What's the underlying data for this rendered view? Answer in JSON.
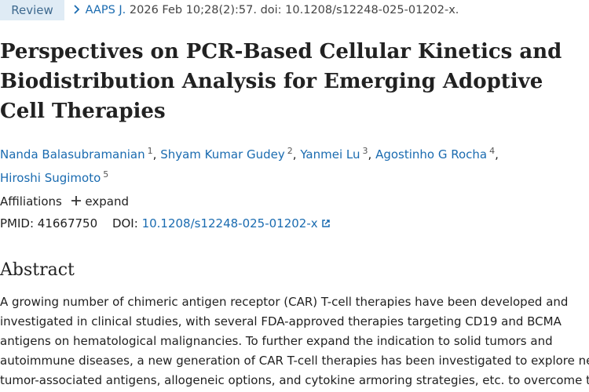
{
  "header": {
    "badge": "Review",
    "journal": "AAPS J.",
    "citation": "2026 Feb 10;28(2):57. doi: 10.1208/s12248-025-01202-x."
  },
  "title": "Perspectives on PCR-Based Cellular Kinetics and Biodistribution Analysis for Emerging Adoptive Cell Therapies",
  "authors": [
    {
      "name": "Nanda Balasubramanian",
      "affiliation": "1"
    },
    {
      "name": "Shyam Kumar Gudey",
      "affiliation": "2"
    },
    {
      "name": "Yanmei Lu",
      "affiliation": "3"
    },
    {
      "name": "Agostinho G Rocha",
      "affiliation": "4"
    },
    {
      "name": "Hiroshi Sugimoto",
      "affiliation": "5"
    }
  ],
  "author_separator": ",",
  "affiliations": {
    "label": "Affiliations",
    "toggle": "expand"
  },
  "identifiers": {
    "pmid_label": "PMID:",
    "pmid": "41667750",
    "doi_label": "DOI:",
    "doi": "10.1208/s12248-025-01202-x"
  },
  "abstract": {
    "heading": "Abstract",
    "lines": [
      "A growing number of chimeric antigen receptor (CAR) T-cell therapies have been developed and",
      "investigated in clinical studies, with several FDA-approved therapies targeting CD19 and BCMA",
      "antigens on hematological malignancies. To further expand the indication to solid tumors and",
      "autoimmune diseases, a new generation of CAR T-cell therapies has been investigated to explore new",
      "tumor-associated antigens, allogeneic options, and cytokine armoring strategies, etc. to overcome the"
    ]
  }
}
